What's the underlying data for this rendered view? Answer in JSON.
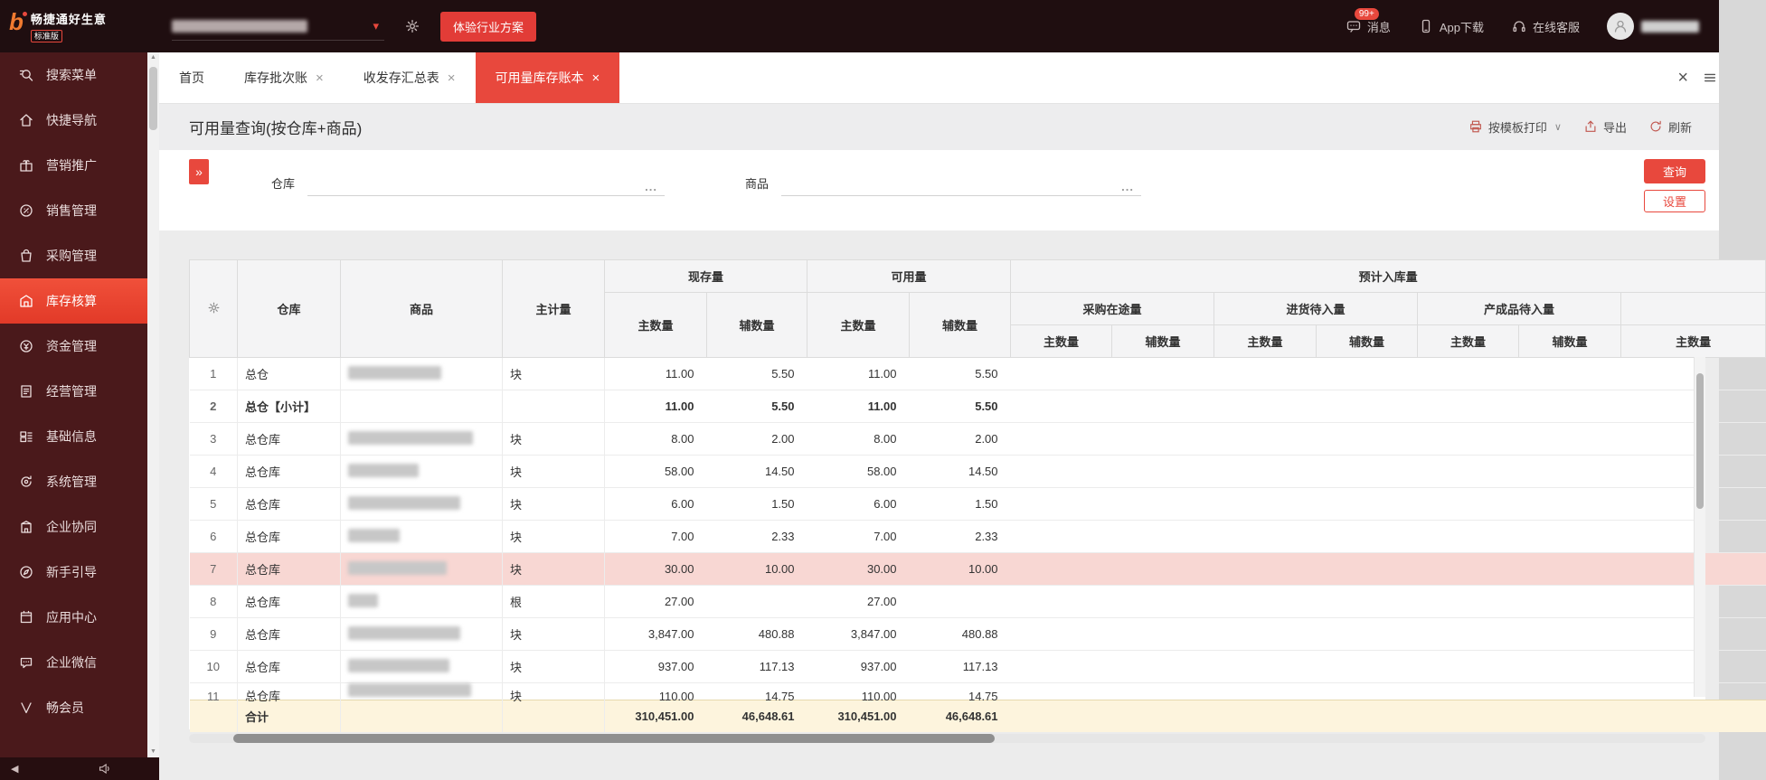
{
  "brand": {
    "logo_mark": "b",
    "logo_text": "畅捷通好生意",
    "edition_badge": "标准版"
  },
  "topbar": {
    "trial_button": "体验行业方案",
    "messages": {
      "label": "消息",
      "badge": "99+"
    },
    "app_download": "App下载",
    "online_support": "在线客服"
  },
  "sidebar": {
    "items": [
      {
        "id": "search",
        "label": "搜索菜单"
      },
      {
        "id": "quick-nav",
        "label": "快捷导航"
      },
      {
        "id": "marketing",
        "label": "营销推广"
      },
      {
        "id": "sales",
        "label": "销售管理"
      },
      {
        "id": "purchase",
        "label": "采购管理"
      },
      {
        "id": "inventory",
        "label": "库存核算",
        "active": true
      },
      {
        "id": "funds",
        "label": "资金管理"
      },
      {
        "id": "business",
        "label": "经营管理"
      },
      {
        "id": "base-info",
        "label": "基础信息"
      },
      {
        "id": "system",
        "label": "系统管理"
      },
      {
        "id": "collab",
        "label": "企业协同"
      },
      {
        "id": "guide",
        "label": "新手引导"
      },
      {
        "id": "app-center",
        "label": "应用中心"
      },
      {
        "id": "wecom",
        "label": "企业微信"
      },
      {
        "id": "member",
        "label": "畅会员"
      }
    ]
  },
  "tabs": {
    "items": [
      {
        "label": "首页",
        "closable": false,
        "active": false
      },
      {
        "label": "库存批次账",
        "closable": true,
        "active": false
      },
      {
        "label": "收发存汇总表",
        "closable": true,
        "active": false
      },
      {
        "label": "可用量库存账本",
        "closable": true,
        "active": true
      }
    ]
  },
  "page": {
    "title": "可用量查询(按仓库+商品)",
    "print_label": "按模板打印",
    "export_label": "导出",
    "refresh_label": "刷新"
  },
  "filters": {
    "warehouse_label": "仓库",
    "product_label": "商品",
    "picker_ellipsis": "...",
    "query_button": "查询",
    "settings_button": "设置"
  },
  "table": {
    "headers": {
      "warehouse": "仓库",
      "product": "商品",
      "base_unit": "主计量",
      "current_stock": "现存量",
      "available": "可用量",
      "expected_inbound": "预计入库量",
      "purchase_in_transit": "采购在途量",
      "incoming_pending": "进货待入量",
      "finished_goods_pending": "产成品待入量",
      "main_qty": "主数量",
      "aux_qty": "辅数量"
    },
    "rows": [
      {
        "seq": "1",
        "warehouse": "总仓",
        "blur_width": 103,
        "unit": "块",
        "cur_main": "11.00",
        "cur_aux": "5.50",
        "avail_main": "11.00",
        "avail_aux": "5.50"
      },
      {
        "seq": "2",
        "warehouse": "总仓【小计】",
        "blur_width": 0,
        "unit": "",
        "cur_main": "11.00",
        "cur_aux": "5.50",
        "avail_main": "11.00",
        "avail_aux": "5.50",
        "subtotal": true
      },
      {
        "seq": "3",
        "warehouse": "总仓库",
        "blur_width": 138,
        "unit": "块",
        "cur_main": "8.00",
        "cur_aux": "2.00",
        "avail_main": "8.00",
        "avail_aux": "2.00"
      },
      {
        "seq": "4",
        "warehouse": "总仓库",
        "blur_width": 78,
        "unit": "块",
        "cur_main": "58.00",
        "cur_aux": "14.50",
        "avail_main": "58.00",
        "avail_aux": "14.50"
      },
      {
        "seq": "5",
        "warehouse": "总仓库",
        "blur_width": 124,
        "unit": "块",
        "cur_main": "6.00",
        "cur_aux": "1.50",
        "avail_main": "6.00",
        "avail_aux": "1.50"
      },
      {
        "seq": "6",
        "warehouse": "总仓库",
        "blur_width": 57,
        "unit": "块",
        "cur_main": "7.00",
        "cur_aux": "2.33",
        "avail_main": "7.00",
        "avail_aux": "2.33"
      },
      {
        "seq": "7",
        "warehouse": "总仓库",
        "blur_width": 109,
        "unit": "块",
        "cur_main": "30.00",
        "cur_aux": "10.00",
        "avail_main": "30.00",
        "avail_aux": "10.00",
        "highlight": true
      },
      {
        "seq": "8",
        "warehouse": "总仓库",
        "blur_width": 33,
        "unit": "根",
        "cur_main": "27.00",
        "cur_aux": "",
        "avail_main": "27.00",
        "avail_aux": ""
      },
      {
        "seq": "9",
        "warehouse": "总仓库",
        "blur_width": 124,
        "unit": "块",
        "cur_main": "3,847.00",
        "cur_aux": "480.88",
        "avail_main": "3,847.00",
        "avail_aux": "480.88"
      },
      {
        "seq": "10",
        "warehouse": "总仓库",
        "blur_width": 112,
        "unit": "块",
        "cur_main": "937.00",
        "cur_aux": "117.13",
        "avail_main": "937.00",
        "avail_aux": "117.13"
      },
      {
        "seq": "11",
        "warehouse": "总仓库",
        "blur_width": 136,
        "unit": "块",
        "cur_main": "110.00",
        "cur_aux": "14.75",
        "avail_main": "110.00",
        "avail_aux": "14.75",
        "partial": true
      }
    ],
    "footer": {
      "label": "合计",
      "cur_main": "310,451.00",
      "cur_aux": "46,648.61",
      "avail_main": "310,451.00",
      "avail_aux": "46,648.61"
    }
  },
  "colors": {
    "accent_red": "#e8483d",
    "sidebar_bg": "#4a191b",
    "topbar_bg": "#1f0e10",
    "highlight_row": "#f8d7d3",
    "total_row": "#fdf4dd"
  }
}
